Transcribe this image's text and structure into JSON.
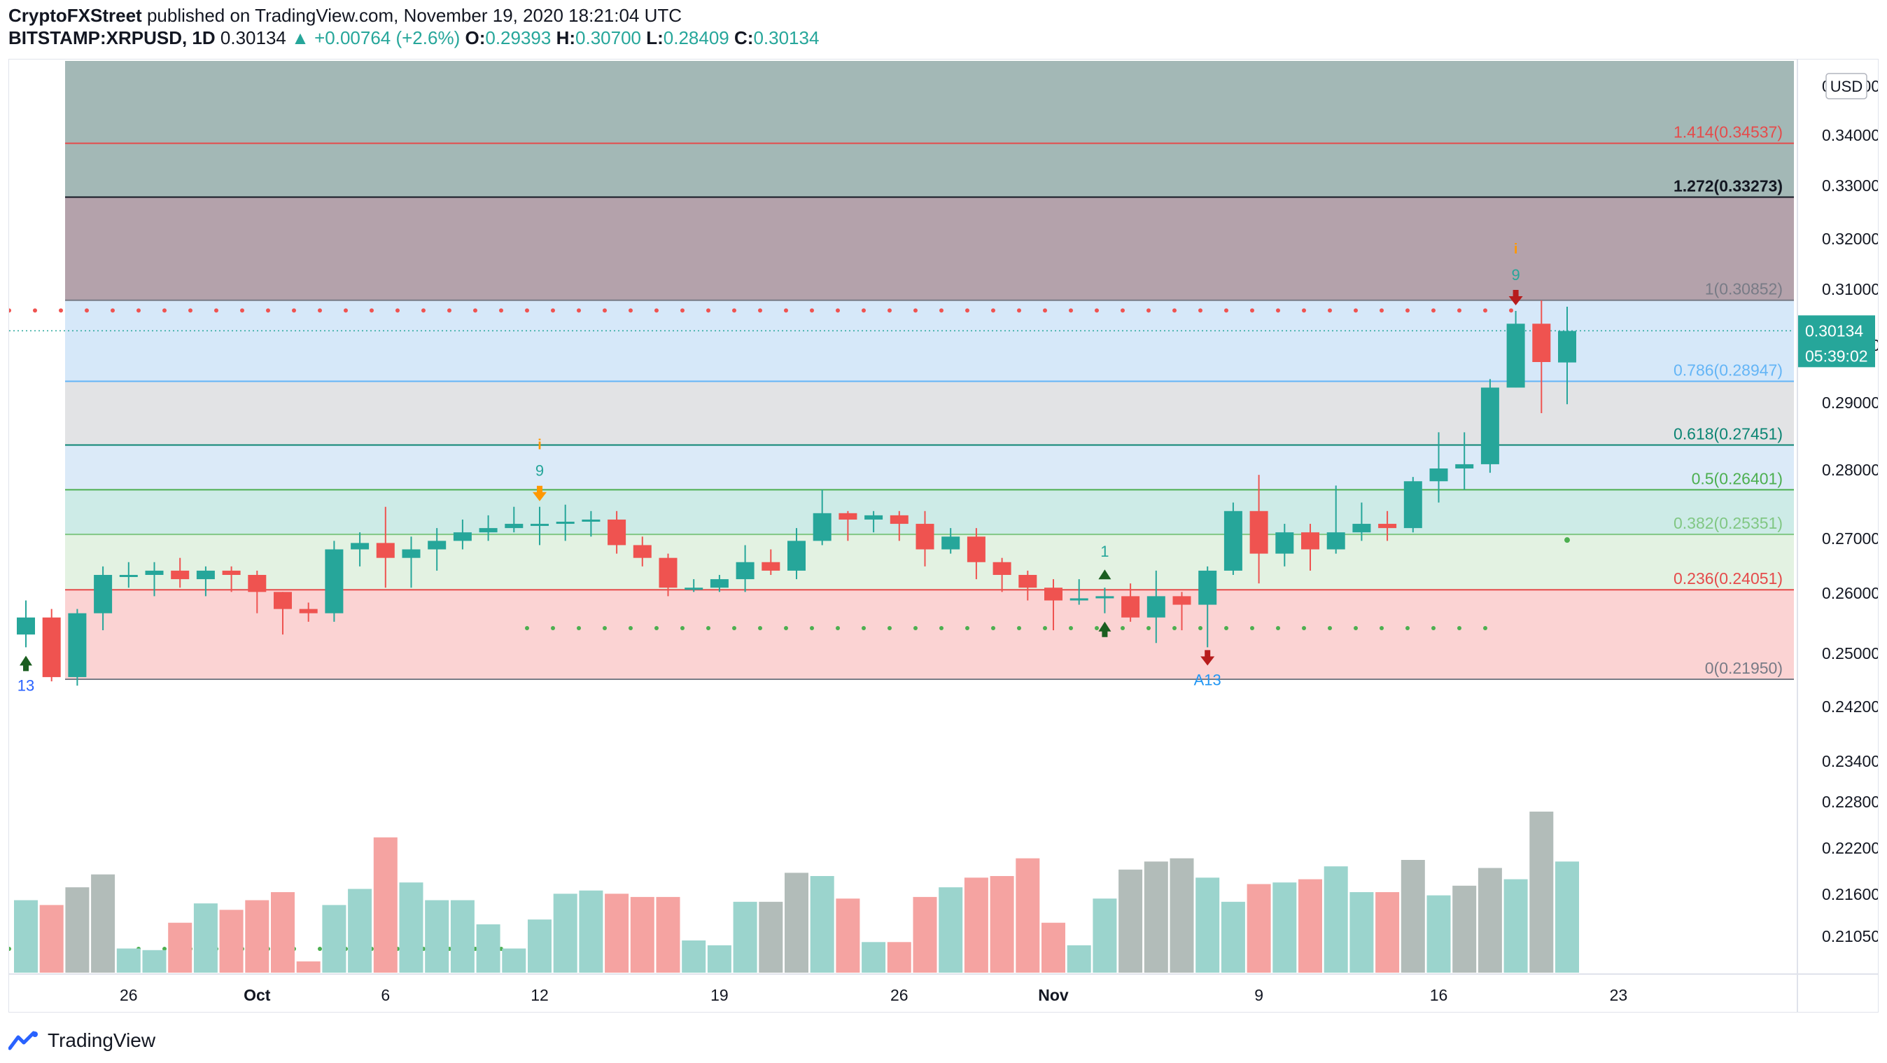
{
  "header": {
    "publisher": "CryptoFXStreet",
    "published_text": "published on TradingView.com, November 19, 2020 18:21:04 UTC",
    "symbol": "BITSTAMP:XRPUSD, 1D",
    "last": "0.30134",
    "change": "+0.00764 (+2.6%)",
    "o_label": "O:",
    "o_value": "0.29393",
    "h_label": "H:",
    "h_value": "0.30700",
    "l_label": "L:",
    "l_value": "0.28409",
    "c_label": "C:",
    "c_value": "0.30134"
  },
  "footer": {
    "brand": "TradingView"
  },
  "colors": {
    "up": "#26a69a",
    "down": "#ef5350",
    "up_volume": "#9bd4cd",
    "down_volume": "#f5a3a1",
    "grey_volume": "#b2bcb9"
  },
  "chart_data": {
    "type": "candlestick",
    "currency": "USD",
    "last_price_label": "0.30134",
    "countdown_label": "05:39:02",
    "y_range": [
      0.2068,
      0.3505
    ],
    "y_ticks": [
      "0.21050",
      "0.21600",
      "0.22200",
      "0.22800",
      "0.23400",
      "0.24200",
      "0.25000",
      "0.26000",
      "0.27000",
      "0.28000",
      "0.29000",
      "0.30000",
      "0.31000",
      "0.32000",
      "0.33000",
      "0.34000",
      "0.35000"
    ],
    "x_ticks": [
      {
        "index": 4,
        "label": "26"
      },
      {
        "index": 9,
        "label": "Oct"
      },
      {
        "index": 14,
        "label": "6"
      },
      {
        "index": 20,
        "label": "12"
      },
      {
        "index": 27,
        "label": "19"
      },
      {
        "index": 34,
        "label": "26"
      },
      {
        "index": 40,
        "label": "Nov"
      },
      {
        "index": 48,
        "label": "9"
      },
      {
        "index": 55,
        "label": "16"
      },
      {
        "index": 62,
        "label": "23"
      }
    ],
    "fib_levels": [
      {
        "ratio": "0",
        "price": 0.2195,
        "label": "0(0.21950)",
        "line": "#787b86",
        "fill": "#fbd3d3",
        "text": "#787b86"
      },
      {
        "ratio": "0.236",
        "price": 0.24051,
        "label": "0.236(0.24051)",
        "line": "#e54b4b",
        "fill": "#e5f3e4",
        "text": "#e54b4b"
      },
      {
        "ratio": "0.382",
        "price": 0.25351,
        "label": "0.382(0.25351)",
        "line": "#81c784",
        "fill": "#e3f2e2",
        "text": "#81c784"
      },
      {
        "ratio": "0.5",
        "price": 0.26401,
        "label": "0.5(0.26401)",
        "line": "#4caf50",
        "fill": "#cdebe7",
        "text": "#4caf50"
      },
      {
        "ratio": "0.618",
        "price": 0.27451,
        "label": "0.618(0.27451)",
        "line": "#0c8574",
        "fill": "#dbeaf8",
        "text": "#0c8574"
      },
      {
        "ratio": "0.786",
        "price": 0.28947,
        "label": "0.786(0.28947)",
        "line": "#64b5f6",
        "fill": "#e2e3e5",
        "text": "#64b5f6"
      },
      {
        "ratio": "1",
        "price": 0.30852,
        "label": "1(0.30852)",
        "line": "#787b86",
        "fill": "#d6e8f9",
        "text": "#787b86"
      },
      {
        "ratio": "1.272",
        "price": 0.33273,
        "label": "1.272(0.33273)",
        "line": "#131722",
        "fill": "#b4a2ab",
        "text": "#131722"
      },
      {
        "ratio": "1.414",
        "price": 0.34537,
        "label": "1.414(0.34537)",
        "line": "#e54b4b",
        "fill": "#a3b8b6",
        "text": "#e54b4b"
      }
    ],
    "candles": [
      {
        "o": 0.23,
        "h": 0.238,
        "l": 0.227,
        "c": 0.234,
        "v": 0.45
      },
      {
        "o": 0.234,
        "h": 0.236,
        "l": 0.219,
        "c": 0.22,
        "v": 0.42
      },
      {
        "o": 0.22,
        "h": 0.236,
        "l": 0.218,
        "c": 0.235,
        "v": 0.53
      },
      {
        "o": 0.235,
        "h": 0.246,
        "l": 0.231,
        "c": 0.244,
        "v": 0.61
      },
      {
        "o": 0.244,
        "h": 0.247,
        "l": 0.241,
        "c": 0.244,
        "v": 0.15
      },
      {
        "o": 0.244,
        "h": 0.247,
        "l": 0.239,
        "c": 0.245,
        "v": 0.14
      },
      {
        "o": 0.245,
        "h": 0.248,
        "l": 0.241,
        "c": 0.243,
        "v": 0.31
      },
      {
        "o": 0.243,
        "h": 0.246,
        "l": 0.239,
        "c": 0.245,
        "v": 0.43
      },
      {
        "o": 0.245,
        "h": 0.246,
        "l": 0.24,
        "c": 0.244,
        "v": 0.39
      },
      {
        "o": 0.244,
        "h": 0.245,
        "l": 0.235,
        "c": 0.24,
        "v": 0.45
      },
      {
        "o": 0.24,
        "h": 0.24,
        "l": 0.23,
        "c": 0.236,
        "v": 0.5
      },
      {
        "o": 0.236,
        "h": 0.2375,
        "l": 0.233,
        "c": 0.235,
        "v": 0.07
      },
      {
        "o": 0.235,
        "h": 0.252,
        "l": 0.233,
        "c": 0.25,
        "v": 0.42
      },
      {
        "o": 0.25,
        "h": 0.254,
        "l": 0.246,
        "c": 0.2515,
        "v": 0.52
      },
      {
        "o": 0.2515,
        "h": 0.26,
        "l": 0.241,
        "c": 0.248,
        "v": 0.84
      },
      {
        "o": 0.248,
        "h": 0.253,
        "l": 0.241,
        "c": 0.25,
        "v": 0.56
      },
      {
        "o": 0.25,
        "h": 0.255,
        "l": 0.245,
        "c": 0.252,
        "v": 0.45
      },
      {
        "o": 0.252,
        "h": 0.257,
        "l": 0.25,
        "c": 0.254,
        "v": 0.45
      },
      {
        "o": 0.254,
        "h": 0.258,
        "l": 0.252,
        "c": 0.255,
        "v": 0.3
      },
      {
        "o": 0.255,
        "h": 0.26,
        "l": 0.254,
        "c": 0.256,
        "v": 0.15
      },
      {
        "o": 0.256,
        "h": 0.26,
        "l": 0.251,
        "c": 0.256,
        "v": 0.33
      },
      {
        "o": 0.256,
        "h": 0.2605,
        "l": 0.252,
        "c": 0.2565,
        "v": 0.49
      },
      {
        "o": 0.2565,
        "h": 0.259,
        "l": 0.253,
        "c": 0.257,
        "v": 0.51
      },
      {
        "o": 0.257,
        "h": 0.259,
        "l": 0.249,
        "c": 0.251,
        "v": 0.49
      },
      {
        "o": 0.251,
        "h": 0.253,
        "l": 0.246,
        "c": 0.248,
        "v": 0.47
      },
      {
        "o": 0.248,
        "h": 0.249,
        "l": 0.239,
        "c": 0.241,
        "v": 0.47
      },
      {
        "o": 0.241,
        "h": 0.243,
        "l": 0.24,
        "c": 0.241,
        "v": 0.2
      },
      {
        "o": 0.241,
        "h": 0.244,
        "l": 0.24,
        "c": 0.243,
        "v": 0.17
      },
      {
        "o": 0.243,
        "h": 0.251,
        "l": 0.24,
        "c": 0.247,
        "v": 0.44
      },
      {
        "o": 0.247,
        "h": 0.25,
        "l": 0.244,
        "c": 0.245,
        "v": 0.44
      },
      {
        "o": 0.245,
        "h": 0.255,
        "l": 0.243,
        "c": 0.252,
        "v": 0.62
      },
      {
        "o": 0.252,
        "h": 0.264,
        "l": 0.251,
        "c": 0.2585,
        "v": 0.6
      },
      {
        "o": 0.2585,
        "h": 0.259,
        "l": 0.252,
        "c": 0.257,
        "v": 0.46
      },
      {
        "o": 0.257,
        "h": 0.259,
        "l": 0.254,
        "c": 0.258,
        "v": 0.19
      },
      {
        "o": 0.258,
        "h": 0.259,
        "l": 0.252,
        "c": 0.256,
        "v": 0.19
      },
      {
        "o": 0.256,
        "h": 0.259,
        "l": 0.246,
        "c": 0.25,
        "v": 0.47
      },
      {
        "o": 0.25,
        "h": 0.255,
        "l": 0.249,
        "c": 0.253,
        "v": 0.53
      },
      {
        "o": 0.253,
        "h": 0.255,
        "l": 0.243,
        "c": 0.247,
        "v": 0.59
      },
      {
        "o": 0.247,
        "h": 0.248,
        "l": 0.24,
        "c": 0.244,
        "v": 0.6
      },
      {
        "o": 0.244,
        "h": 0.245,
        "l": 0.238,
        "c": 0.241,
        "v": 0.71
      },
      {
        "o": 0.241,
        "h": 0.243,
        "l": 0.231,
        "c": 0.238,
        "v": 0.31
      },
      {
        "o": 0.238,
        "h": 0.243,
        "l": 0.237,
        "c": 0.2385,
        "v": 0.17
      },
      {
        "o": 0.2385,
        "h": 0.241,
        "l": 0.235,
        "c": 0.239,
        "v": 0.46
      },
      {
        "o": 0.239,
        "h": 0.242,
        "l": 0.233,
        "c": 0.234,
        "v": 0.64
      },
      {
        "o": 0.234,
        "h": 0.245,
        "l": 0.228,
        "c": 0.239,
        "v": 0.69
      },
      {
        "o": 0.239,
        "h": 0.24,
        "l": 0.231,
        "c": 0.237,
        "v": 0.71
      },
      {
        "o": 0.237,
        "h": 0.246,
        "l": 0.227,
        "c": 0.245,
        "v": 0.59
      },
      {
        "o": 0.245,
        "h": 0.261,
        "l": 0.244,
        "c": 0.259,
        "v": 0.44
      },
      {
        "o": 0.259,
        "h": 0.2675,
        "l": 0.242,
        "c": 0.249,
        "v": 0.55
      },
      {
        "o": 0.249,
        "h": 0.256,
        "l": 0.246,
        "c": 0.254,
        "v": 0.56
      },
      {
        "o": 0.254,
        "h": 0.256,
        "l": 0.245,
        "c": 0.25,
        "v": 0.58
      },
      {
        "o": 0.25,
        "h": 0.265,
        "l": 0.249,
        "c": 0.254,
        "v": 0.66
      },
      {
        "o": 0.254,
        "h": 0.261,
        "l": 0.252,
        "c": 0.256,
        "v": 0.5
      },
      {
        "o": 0.256,
        "h": 0.259,
        "l": 0.252,
        "c": 0.255,
        "v": 0.5
      },
      {
        "o": 0.255,
        "h": 0.267,
        "l": 0.254,
        "c": 0.266,
        "v": 0.7
      },
      {
        "o": 0.266,
        "h": 0.2775,
        "l": 0.261,
        "c": 0.269,
        "v": 0.48
      },
      {
        "o": 0.269,
        "h": 0.2775,
        "l": 0.264,
        "c": 0.27,
        "v": 0.54
      },
      {
        "o": 0.27,
        "h": 0.29,
        "l": 0.268,
        "c": 0.288,
        "v": 0.65
      },
      {
        "o": 0.288,
        "h": 0.306,
        "l": 0.288,
        "c": 0.303,
        "v": 0.58
      },
      {
        "o": 0.303,
        "h": 0.3085,
        "l": 0.282,
        "c": 0.294,
        "v": 1.0
      },
      {
        "o": 0.2939,
        "h": 0.307,
        "l": 0.2841,
        "c": 0.3013,
        "v": 0.69
      }
    ],
    "overlays": {
      "resistance_dots_price": 0.3061,
      "support_dots_price": 0.2315,
      "small_green_dot_price": 0.2522
    },
    "signals": [
      {
        "index": 0,
        "type": "buy-arrow",
        "label": "13"
      },
      {
        "index": 20,
        "type": "sell-arrow-orange",
        "label": "9",
        "note": "i"
      },
      {
        "index": 42,
        "type": "buy-arrow",
        "label": "1"
      },
      {
        "index": 46,
        "type": "sell-arrow",
        "label": "A13"
      },
      {
        "index": 58,
        "type": "sell-arrow",
        "label": "9",
        "note": "i"
      }
    ]
  }
}
